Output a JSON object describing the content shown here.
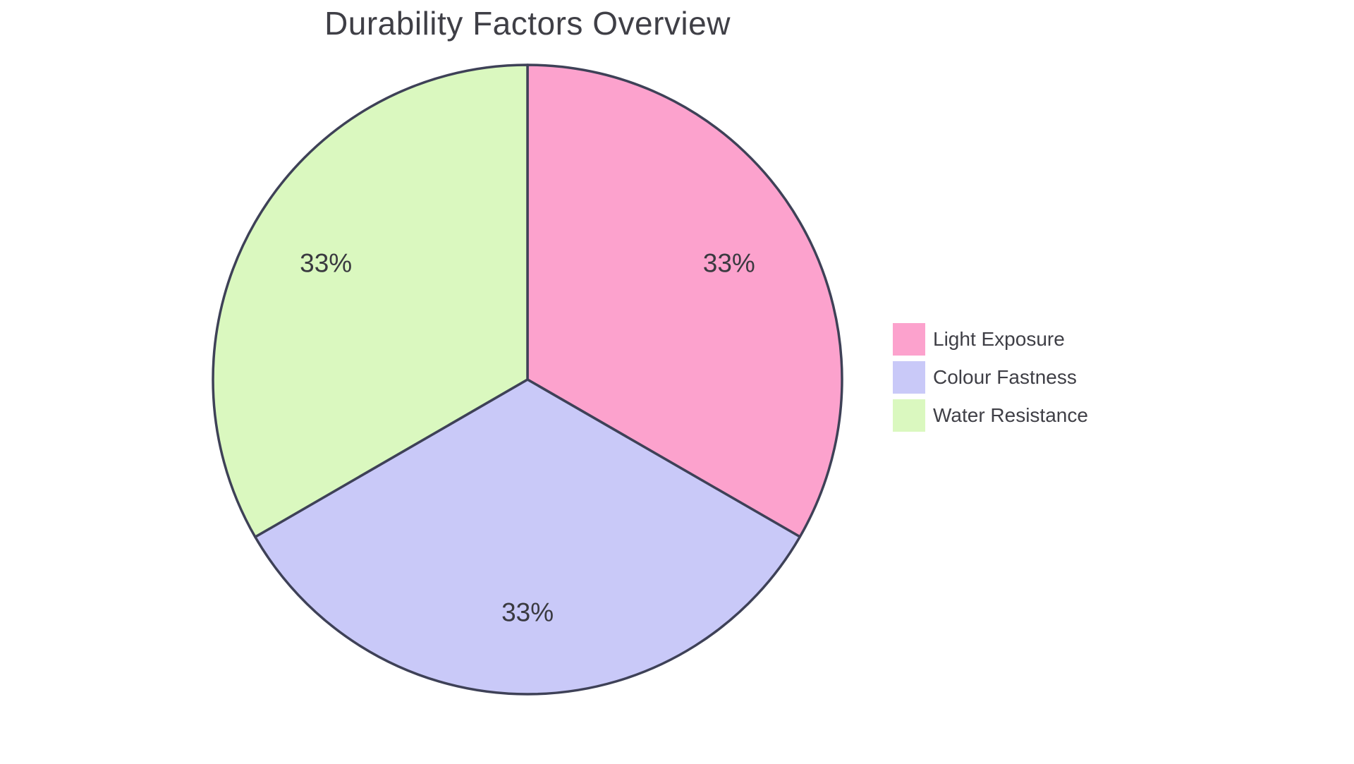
{
  "chart_data": {
    "type": "pie",
    "title": "Durability Factors Overview",
    "categories": [
      "Light Exposure",
      "Colour Fastness",
      "Water Resistance"
    ],
    "values": [
      33.33,
      33.33,
      33.34
    ],
    "slice_labels": [
      "33%",
      "33%",
      "33%"
    ],
    "colors": [
      "#FCA2CD",
      "#C9C9F8",
      "#DAF8BF"
    ],
    "slice_stroke_color": "#3E4157",
    "slice_label_color": "#3A3A40",
    "title_color": "#3F3F46",
    "legend_text_color": "#3F3F46",
    "legend_position": "right",
    "start_angle": "top",
    "direction": "clockwise",
    "legend": [
      {
        "label": "Light Exposure",
        "color": "#FCA2CD"
      },
      {
        "label": "Colour Fastness",
        "color": "#C9C9F8"
      },
      {
        "label": "Water Resistance",
        "color": "#DAF8BF"
      }
    ]
  }
}
